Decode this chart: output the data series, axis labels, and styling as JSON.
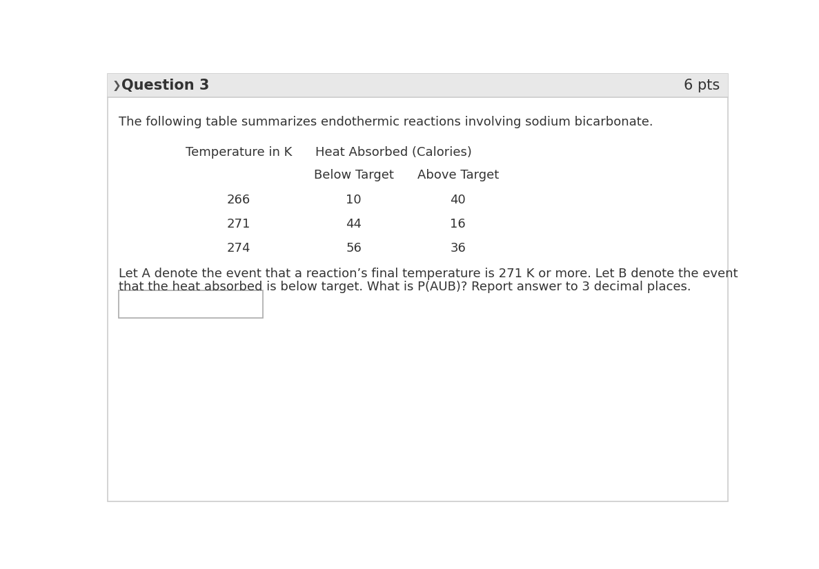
{
  "title": "Question 3",
  "pts": "6 pts",
  "description": "The following table summarizes endothermic reactions involving sodium bicarbonate.",
  "col_header_1": "Temperature in K",
  "col_header_2": "Heat Absorbed (Calories)",
  "sub_header_below": "Below Target",
  "sub_header_above": "Above Target",
  "table_data": [
    [
      "266",
      "10",
      "40"
    ],
    [
      "271",
      "44",
      "16"
    ],
    [
      "274",
      "56",
      "36"
    ]
  ],
  "footer_text": "Let A denote the event that a reaction’s final temperature is 271 K or more. Let B denote the event\nthat the heat absorbed is below target. What is P(AUB)? Report answer to 3 decimal places.",
  "bg_color": "#ffffff",
  "header_bg": "#e8e8e8",
  "border_color": "#cccccc",
  "text_color": "#333333",
  "title_fontsize": 15,
  "body_fontsize": 13,
  "header_fontsize": 13
}
